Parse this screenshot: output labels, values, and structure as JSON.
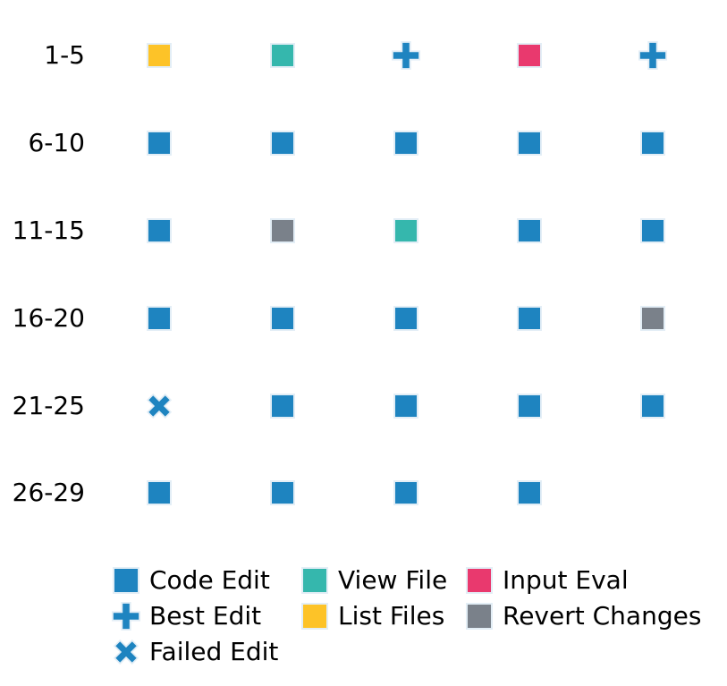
{
  "chart_data": {
    "type": "scatter",
    "title": "",
    "xlabel": "",
    "ylabel": "",
    "grid_on": false,
    "legend_position": "bottom",
    "row_labels": [
      "1-5",
      "6-10",
      "11-15",
      "16-20",
      "21-25",
      "26-29"
    ],
    "columns_per_row": 5,
    "cells": [
      [
        "list_files",
        "view_file",
        "best_edit",
        "input_eval",
        "best_edit"
      ],
      [
        "code_edit",
        "code_edit",
        "code_edit",
        "code_edit",
        "code_edit"
      ],
      [
        "code_edit",
        "revert_changes",
        "view_file",
        "code_edit",
        "code_edit"
      ],
      [
        "code_edit",
        "code_edit",
        "code_edit",
        "code_edit",
        "revert_changes"
      ],
      [
        "failed_edit",
        "code_edit",
        "code_edit",
        "code_edit",
        "code_edit"
      ],
      [
        "code_edit",
        "code_edit",
        "code_edit",
        "code_edit",
        null
      ]
    ],
    "legend": [
      {
        "key": "code_edit",
        "label": "Code Edit",
        "marker": "square",
        "color": "#1E84C0"
      },
      {
        "key": "view_file",
        "label": "View File",
        "marker": "square",
        "color": "#35B7AD"
      },
      {
        "key": "input_eval",
        "label": "Input Eval",
        "marker": "square",
        "color": "#E9396E"
      },
      {
        "key": "best_edit",
        "label": "Best Edit",
        "marker": "plus",
        "color": "#1E84C0"
      },
      {
        "key": "list_files",
        "label": "List Files",
        "marker": "square",
        "color": "#FDC328"
      },
      {
        "key": "revert_changes",
        "label": "Revert Changes",
        "marker": "square",
        "color": "#7A818A"
      },
      {
        "key": "failed_edit",
        "label": "Failed Edit",
        "marker": "x",
        "color": "#1E84C0"
      }
    ],
    "marker_edge_color": "#e3eef6"
  }
}
